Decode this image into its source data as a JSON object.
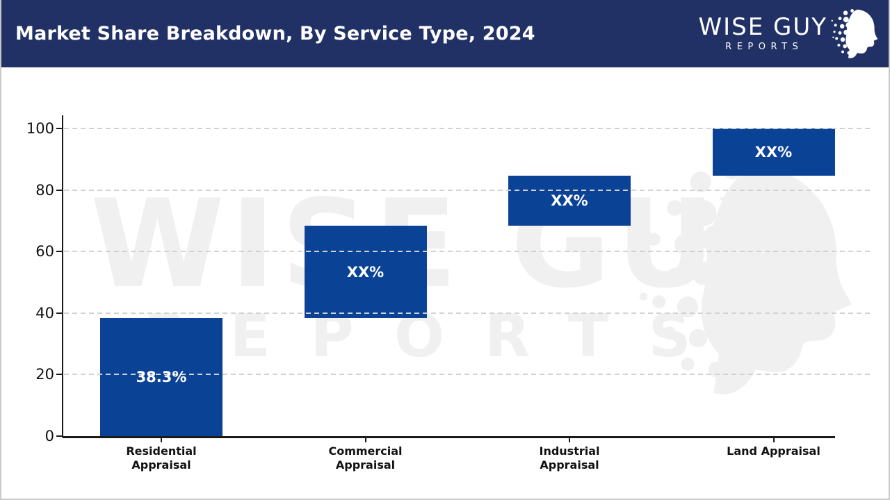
{
  "header": {
    "title": "Market Share Breakdown, By Service Type, 2024",
    "bg_color": "#213166",
    "logo": {
      "line1": "WISE GUY",
      "line2": "REPORTS"
    }
  },
  "watermark": {
    "line1": "WISE GUY",
    "line2": "REPORTS"
  },
  "chart_data": {
    "type": "bar",
    "variant": "waterfall",
    "title": "Market Share Breakdown, By Service Type, 2024",
    "categories": [
      [
        "Residential",
        "Appraisal"
      ],
      [
        "Commercial",
        "Appraisal"
      ],
      [
        "Industrial",
        "Appraisal"
      ],
      [
        "Land Appraisal"
      ]
    ],
    "bars": [
      {
        "name": "Residential Appraisal",
        "label": "38.3%",
        "start": 0,
        "end": 38.3
      },
      {
        "name": "Commercial Appraisal",
        "label": "XX%",
        "start": 38.3,
        "end": 68.3
      },
      {
        "name": "Industrial Appraisal",
        "label": "XX%",
        "start": 68.3,
        "end": 84.7
      },
      {
        "name": "Land Appraisal",
        "label": "XX%",
        "start": 84.7,
        "end": 100
      }
    ],
    "yticks": [
      0,
      20,
      40,
      60,
      80,
      100
    ],
    "ylim": [
      0,
      104.5
    ],
    "xlabel": "",
    "ylabel": "",
    "grid": {
      "axis": "y",
      "style": "dashed",
      "color": "#d2d2d2",
      "drawn_over_bars": true
    },
    "legend": "none",
    "bar_color": "#0a4296",
    "bar_label_color": "#ffffff"
  }
}
